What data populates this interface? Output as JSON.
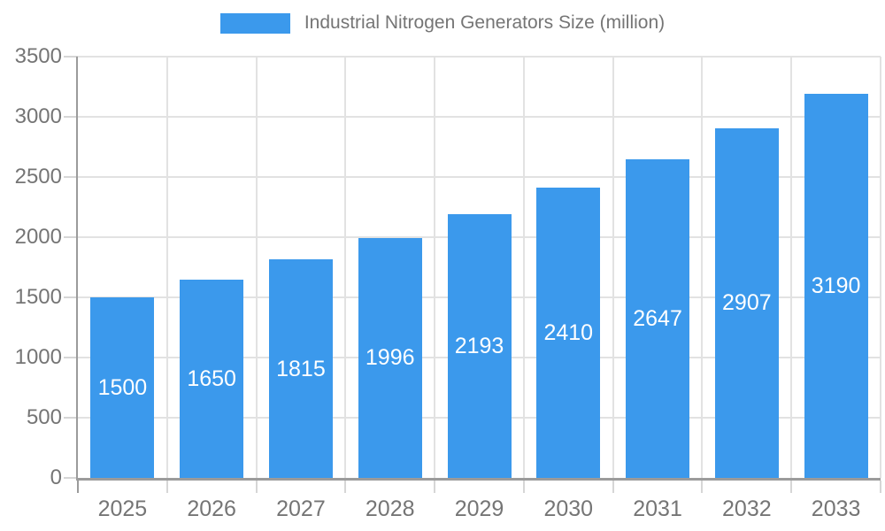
{
  "legend": {
    "label": "Industrial Nitrogen Generators Size (million)"
  },
  "colors": {
    "bar": "#3B99EC",
    "axis_text": "#757575",
    "value_label_text": "#FFFFFF",
    "grid_line": "#E2E2E2",
    "tick_line": "#D6D6D6",
    "axis_line": "#9B9B9B",
    "background": "#FFFFFF"
  },
  "chart_data": {
    "type": "bar",
    "title": "",
    "xlabel": "",
    "ylabel": "",
    "categories": [
      "2025",
      "2026",
      "2027",
      "2028",
      "2029",
      "2030",
      "2031",
      "2032",
      "2033"
    ],
    "series": [
      {
        "name": "Industrial Nitrogen Generators Size (million)",
        "values": [
          1500,
          1650,
          1815,
          1996,
          2193,
          2410,
          2647,
          2907,
          3190
        ]
      }
    ],
    "value_labels_shown": true,
    "value_label_position": "inside-center",
    "ylim": [
      0,
      3500
    ],
    "yticks": [
      0,
      500,
      1000,
      1500,
      2000,
      2500,
      3000,
      3500
    ],
    "grid": true,
    "legend_position": "top"
  }
}
